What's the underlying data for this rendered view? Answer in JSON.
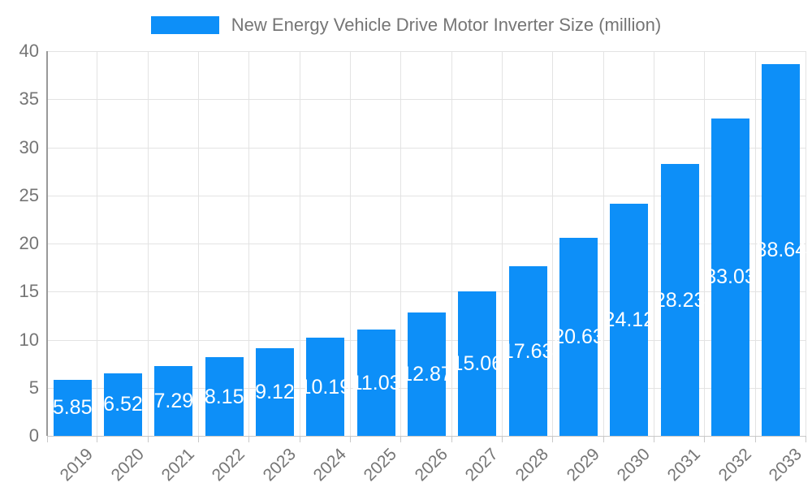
{
  "legend": {
    "label": "New Energy Vehicle Drive Motor Inverter Size (million)"
  },
  "chart_data": {
    "type": "bar",
    "title": "New Energy Vehicle Drive Motor Inverter Size (million)",
    "categories": [
      "2019",
      "2020",
      "2021",
      "2022",
      "2023",
      "2024",
      "2025",
      "2026",
      "2027",
      "2028",
      "2029",
      "2030",
      "2031",
      "2032",
      "2033"
    ],
    "values": [
      5.85,
      6.52,
      7.29,
      8.15,
      9.12,
      10.19,
      11.03,
      12.87,
      15.06,
      17.63,
      20.63,
      24.12,
      28.23,
      33.03,
      38.64
    ],
    "value_labels": [
      "5.85",
      "6.52",
      "7.29",
      "8.15",
      "9.12",
      "10.19",
      "11.03",
      "12.87",
      "15.06",
      "17.63",
      "20.63",
      "24.12",
      "28.23",
      "33.03",
      "38.64"
    ],
    "xlabel": "",
    "ylabel": "",
    "ylim": [
      0,
      40
    ],
    "yticks": [
      0,
      5,
      10,
      15,
      20,
      25,
      30,
      35,
      40
    ],
    "grid": true,
    "legend_position": "top",
    "bar_labels_visible": true
  },
  "colors": {
    "bar": "#0D8FF8",
    "grid": "#E3E3E3",
    "axis_line": "#999999",
    "baseline": "#C9C9C9",
    "tick": "#C9C9C9",
    "label_text": "#757575",
    "bar_label": "#FFFFFF",
    "background": "#FFFFFF"
  }
}
